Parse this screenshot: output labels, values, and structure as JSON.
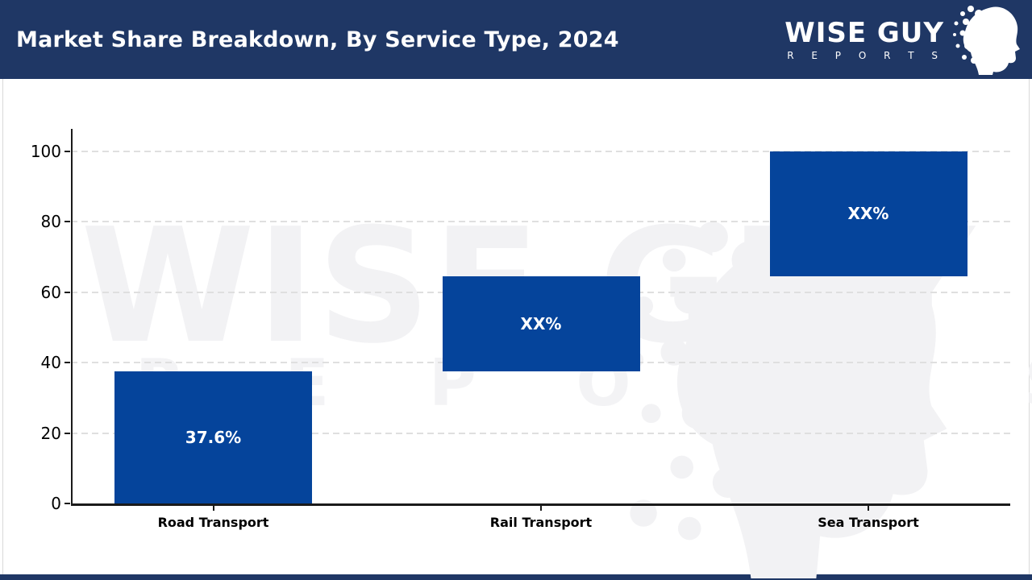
{
  "header": {
    "title": "Market Share Breakdown, By Service Type, 2024",
    "logo": {
      "name": "WISE GUY",
      "sub": "R E P O R T S"
    }
  },
  "watermark": {
    "line1": "WISE GUY",
    "line2": "R E P O R T S"
  },
  "chart_data": {
    "type": "bar",
    "subtype": "waterfall",
    "title": "Market Share Breakdown, By Service Type, 2024",
    "categories": [
      "Road Transport",
      "Rail Transport",
      "Sea Transport"
    ],
    "series": [
      {
        "name": "Market share (%)",
        "segments": [
          {
            "category": "Road Transport",
            "from": 0,
            "to": 37.6,
            "label": "37.6%"
          },
          {
            "category": "Rail Transport",
            "from": 37.6,
            "to": 64.6,
            "label": "XX%"
          },
          {
            "category": "Sea Transport",
            "from": 64.6,
            "to": 100,
            "label": "XX%"
          }
        ]
      }
    ],
    "ylim": [
      0,
      105
    ],
    "yticks": [
      0,
      20,
      40,
      60,
      80,
      100
    ],
    "xlabel": "",
    "ylabel": "",
    "grid": "horizontal-dashed",
    "legend": "none",
    "bar_color": "#05449B",
    "bar_label_color": "#FFFFFF"
  },
  "colors": {
    "header_bg": "#1F3765",
    "footer_bg": "#1F3765",
    "watermark": "#F2F2F4",
    "gridline": "#DFDFDF",
    "axis": "#1A1A1A"
  }
}
